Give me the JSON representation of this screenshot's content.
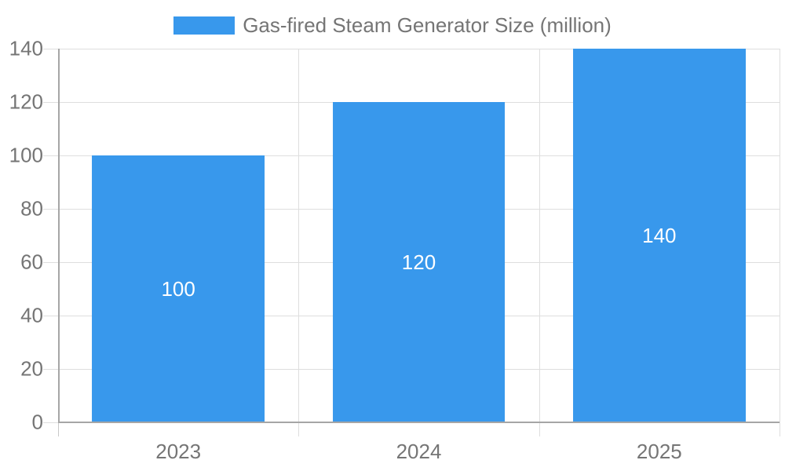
{
  "legend": {
    "label": "Gas-fired Steam Generator Size (million)"
  },
  "chart_data": {
    "type": "bar",
    "title": "Gas-fired Steam Generator Size (million)",
    "categories": [
      "2023",
      "2024",
      "2025"
    ],
    "values": [
      100,
      120,
      140
    ],
    "data_labels": [
      "100",
      "120",
      "140"
    ],
    "y_ticks": [
      0,
      20,
      40,
      60,
      80,
      100,
      120,
      140
    ],
    "ylim": [
      0,
      140
    ],
    "xlabel": "",
    "ylabel": "",
    "legend_position": "top-center",
    "grid": true,
    "colors": {
      "bar": "#3898ec",
      "data_label": "#ffffff",
      "axis_text": "#757575",
      "axis_line": "#a6a6a6",
      "gridline": "#dedede",
      "background": "#ffffff"
    }
  }
}
